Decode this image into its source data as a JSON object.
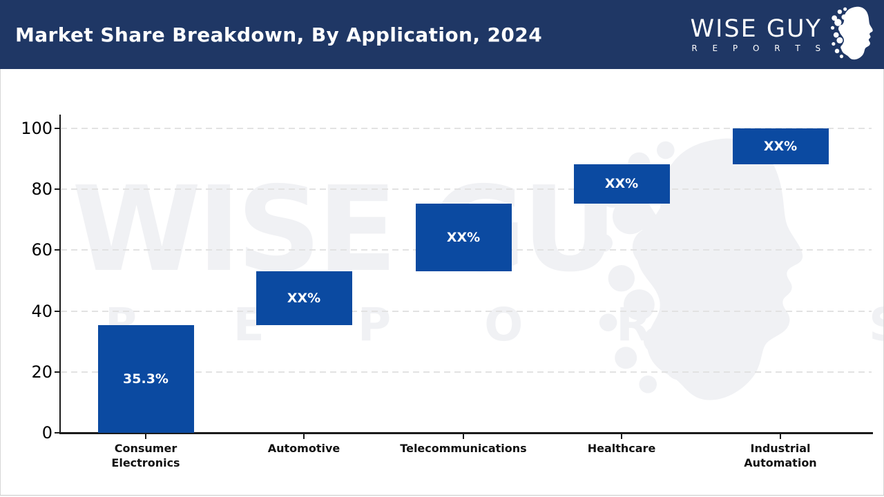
{
  "header": {
    "title": "Market Share Breakdown, By Application, 2024",
    "logo": {
      "line1": "WISE GUY",
      "line2": "R E P O R T S"
    }
  },
  "watermark": {
    "line1": "WISE GUY",
    "line2": "R E P O R T S"
  },
  "colors": {
    "header_bg": "#1f3765",
    "bar": "#0b4aa1",
    "bar_label": "#ffffff",
    "grid": "#e2e2e2",
    "axis": "#1a1a1a",
    "watermark": "#f0f1f4"
  },
  "chart_data": {
    "type": "bar",
    "subtype": "waterfall",
    "title": "Market Share Breakdown, By Application, 2024",
    "categories": [
      "Consumer\nElectronics",
      "Automotive",
      "Telecommunications",
      "Healthcare",
      "Industrial\nAutomation"
    ],
    "segments": [
      {
        "category": "Consumer Electronics",
        "start": 0,
        "end": 35.3,
        "value": 35.3,
        "label": "35.3%"
      },
      {
        "category": "Automotive",
        "start": 35.3,
        "end": 53.0,
        "value": 17.7,
        "label": "XX%"
      },
      {
        "category": "Telecommunications",
        "start": 53.0,
        "end": 75.3,
        "value": 22.3,
        "label": "XX%"
      },
      {
        "category": "Healthcare",
        "start": 75.3,
        "end": 88.2,
        "value": 12.9,
        "label": "XX%"
      },
      {
        "category": "Industrial Automation",
        "start": 88.2,
        "end": 100.0,
        "value": 11.8,
        "label": "XX%"
      }
    ],
    "ylim": [
      0,
      100
    ],
    "yticks": [
      0,
      20,
      40,
      60,
      80,
      100
    ],
    "xlabel": "",
    "ylabel": "",
    "grid": "horizontal-dashed",
    "legend": null
  }
}
